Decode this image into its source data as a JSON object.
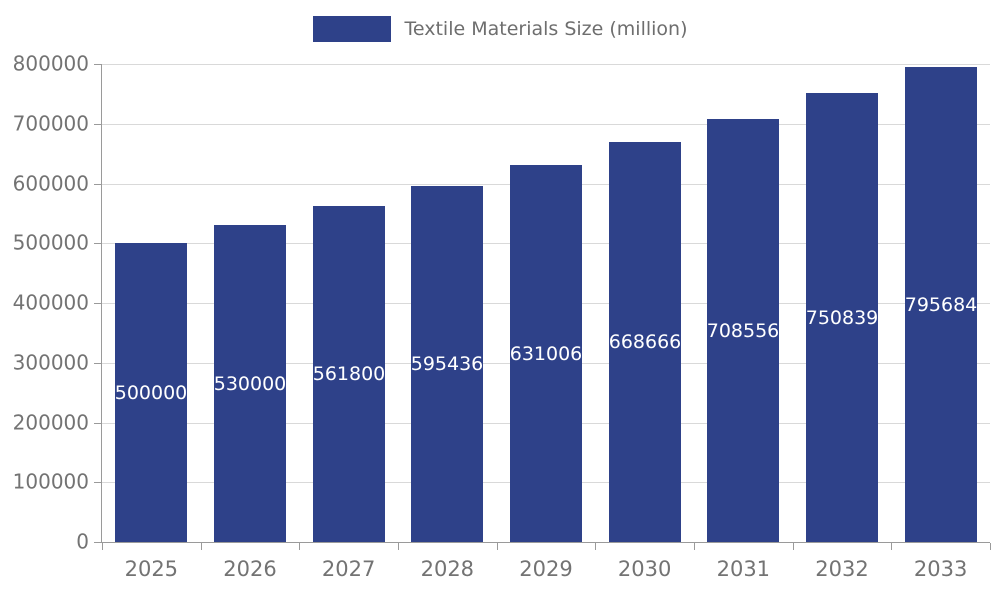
{
  "chart_data": {
    "type": "bar",
    "title": "",
    "legend_label": "Textile Materials Size (million)",
    "legend_position": "top",
    "categories": [
      "2025",
      "2026",
      "2027",
      "2028",
      "2029",
      "2030",
      "2031",
      "2032",
      "2033"
    ],
    "values": [
      500000,
      530000,
      561800,
      595436,
      631006,
      668666,
      708556,
      750839,
      795684
    ],
    "value_labels": [
      "500000",
      "530000",
      "561800",
      "595436",
      "631006",
      "668666",
      "708556",
      "750839",
      "795684"
    ],
    "xlabel": "",
    "ylabel": "",
    "ylim": [
      0,
      800000
    ],
    "ytick_step": 100000,
    "ytick_labels": [
      "0",
      "100000",
      "200000",
      "300000",
      "400000",
      "500000",
      "600000",
      "700000",
      "800000"
    ],
    "grid": true,
    "colors": {
      "bar": "#2e4189",
      "bar_label": "#ffffff",
      "axis": "#9a9a9a",
      "grid": "#d9d9d9",
      "tick_label": "#737373",
      "legend_text": "#6e6e6e",
      "background": "#ffffff"
    }
  }
}
